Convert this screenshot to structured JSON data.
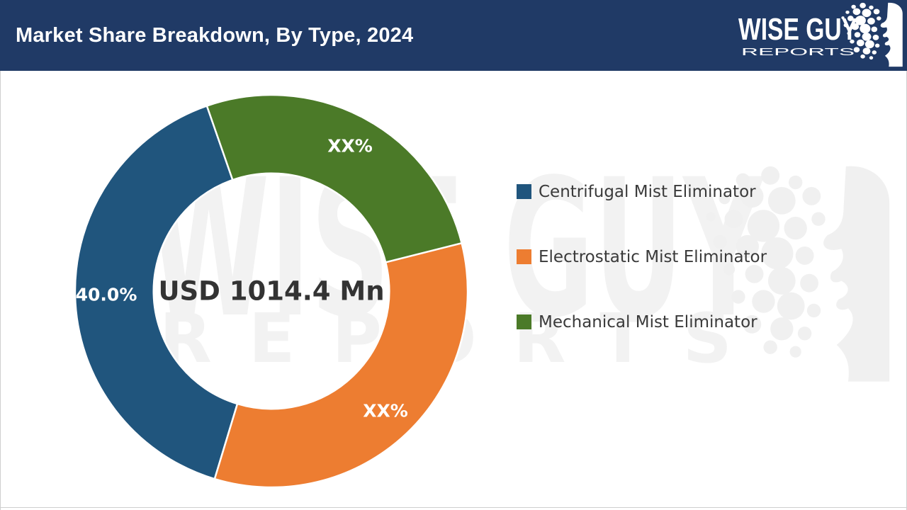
{
  "header": {
    "title": "Market Share Breakdown, By Type, 2024",
    "logo": {
      "line1": "WISE GUY",
      "line2": "REPORTS"
    }
  },
  "chart_data": {
    "type": "pie",
    "subtype": "donut",
    "title": "Market Share Breakdown, By Type, 2024",
    "center_label": "USD 1014.4 Mn",
    "start_angle_deg": 109.2,
    "direction": "counterclockwise",
    "inner_radius_ratio": 0.6,
    "legend_position": "right",
    "slices": [
      {
        "label": "Centrifugal Mist Eliminator",
        "value": 40.0,
        "display": "40.0%",
        "color": "#20557d"
      },
      {
        "label": "Electrostatic Mist Eliminator",
        "value": 33.6,
        "display": "XX%",
        "color": "#ed7d31"
      },
      {
        "label": "Mechanical Mist Eliminator",
        "value": 26.4,
        "display": "XX%",
        "color": "#4b7a28"
      }
    ]
  },
  "watermark": {
    "line1": "WISE GUY",
    "line2": "REPORTS"
  },
  "colors": {
    "header_bg": "#203a66",
    "border": "#cfcfcf",
    "watermark": "#f2f2f2",
    "center_text": "#333333",
    "legend_text": "#3a3a3a"
  }
}
